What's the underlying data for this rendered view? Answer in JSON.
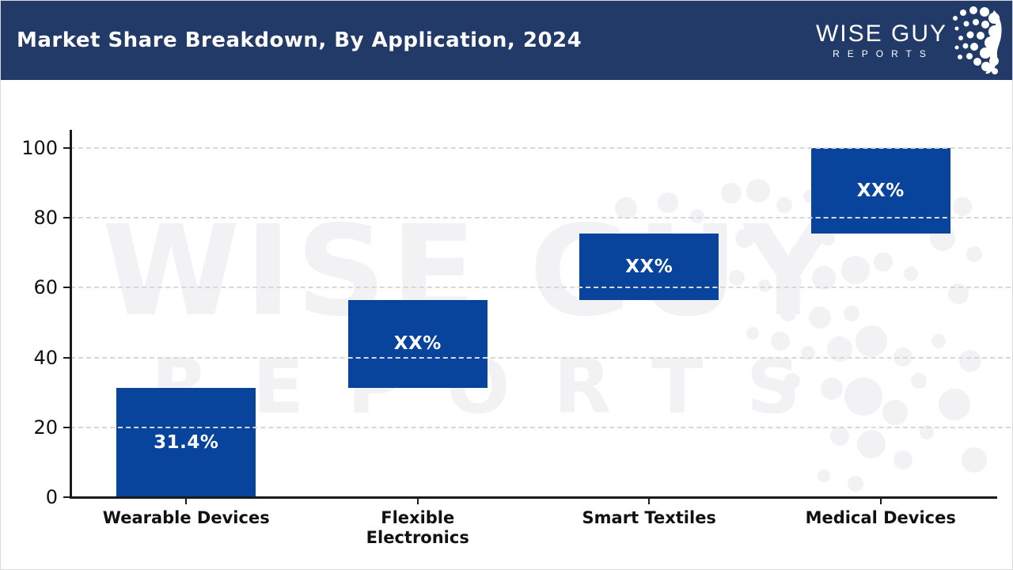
{
  "header": {
    "title": "Market Share Breakdown, By Application, 2024",
    "logo": {
      "line1": "WISE GUY",
      "line2": "REPORTS"
    }
  },
  "watermark": {
    "line1": "WISE GUY",
    "line2": "REPORTS"
  },
  "colors": {
    "header_bg": "#213a68",
    "bar": "#08449c",
    "watermark": "#f2f2f4",
    "axis": "#1a1a1a",
    "grid": "#d8d8d8",
    "bar_label": "#ffffff"
  },
  "chart_data": {
    "type": "bar",
    "subtype": "floating-segment-waterfall",
    "title": "Market Share Breakdown, By Application, 2024",
    "categories": [
      "Wearable Devices",
      "Flexible\nElectronics",
      "Smart Textiles",
      "Medical Devices"
    ],
    "bars": [
      {
        "category": "Wearable Devices",
        "start": 0,
        "end": 31.4,
        "label": "31.4%"
      },
      {
        "category": "Flexible Electronics",
        "start": 31.4,
        "end": 56.5,
        "label": "XX%"
      },
      {
        "category": "Smart Textiles",
        "start": 56.5,
        "end": 75.5,
        "label": "XX%"
      },
      {
        "category": "Medical Devices",
        "start": 75.5,
        "end": 100,
        "label": "XX%"
      }
    ],
    "xlabel": "",
    "ylabel": "",
    "ylim": [
      0,
      100
    ],
    "yticks": [
      0,
      20,
      40,
      60,
      80,
      100
    ],
    "grid": "horizontal dashed",
    "legend": "none"
  }
}
